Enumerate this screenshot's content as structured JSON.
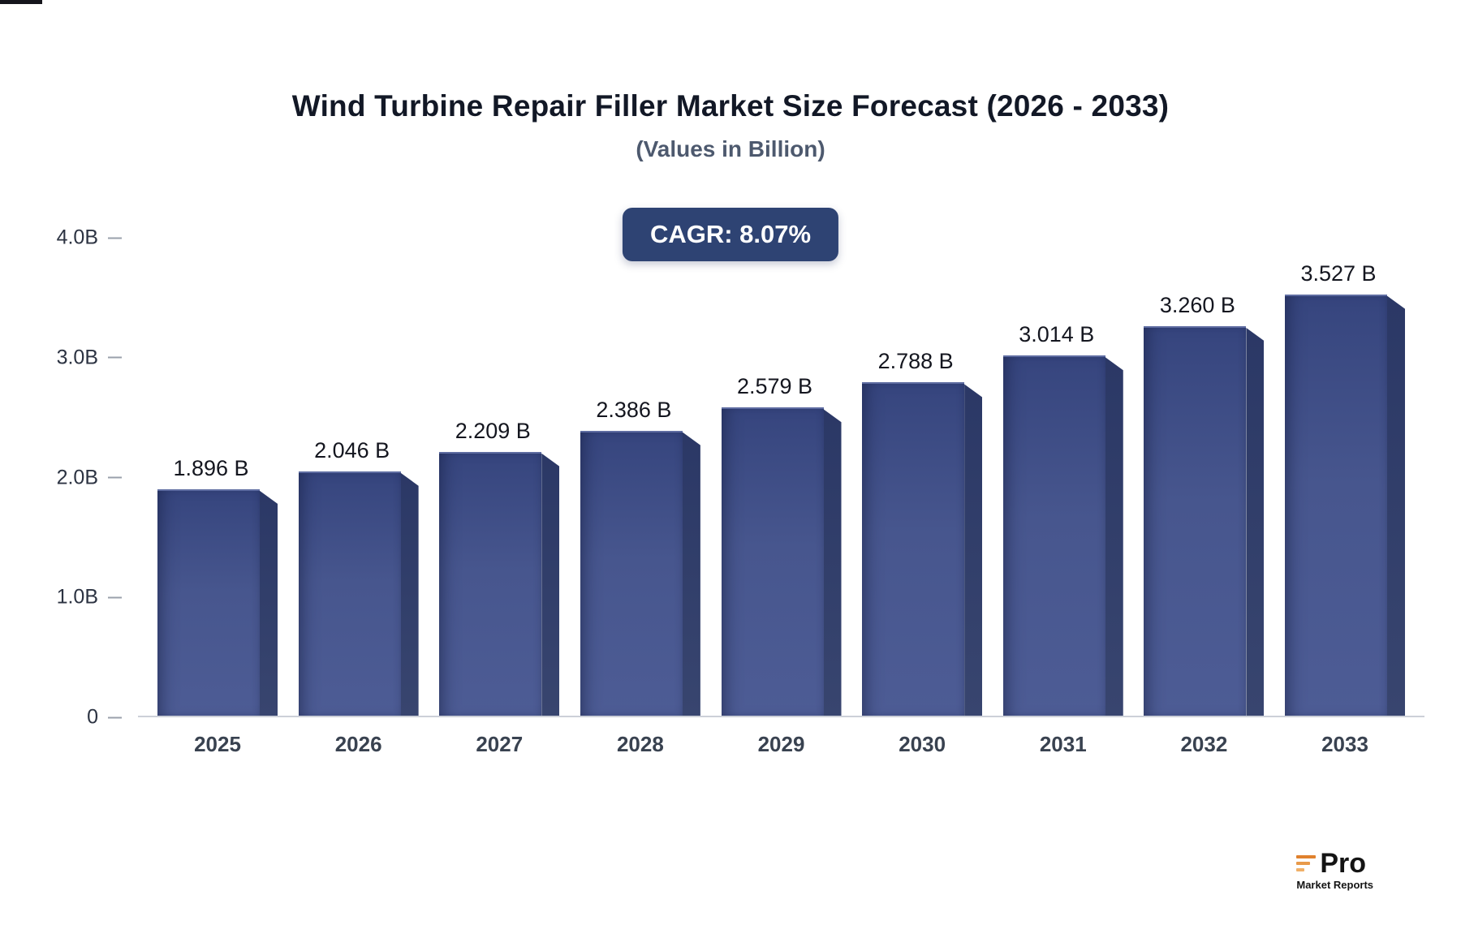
{
  "title": "Wind Turbine Repair Filler Market Size Forecast (2026 - 2033)",
  "subtitle": "(Values in Billion)",
  "cagr_label": "CAGR: 8.07%",
  "logo": {
    "name": "Pro",
    "sub": "Market Reports"
  },
  "colors": {
    "bar_face_top": "#36457e",
    "bar_face_bottom": "#4d5c95",
    "bar_side": "#2b3866",
    "badge_bg": "#2e4373",
    "title_text": "#121826",
    "subtitle_text": "#4d596e",
    "axis_line": "#ccd0d8",
    "logo_accent": "#e0812d"
  },
  "chart_data": {
    "type": "bar",
    "title": "Wind Turbine Repair Filler Market Size Forecast (2026 - 2033)",
    "subtitle": "(Values in Billion)",
    "annotation": "CAGR: 8.07%",
    "categories": [
      "2025",
      "2026",
      "2027",
      "2028",
      "2029",
      "2030",
      "2031",
      "2032",
      "2033"
    ],
    "values": [
      1.896,
      2.046,
      2.209,
      2.386,
      2.579,
      2.788,
      3.014,
      3.26,
      3.527
    ],
    "value_labels": [
      "1.896 B",
      "2.046 B",
      "2.209 B",
      "2.386 B",
      "2.579 B",
      "2.788 B",
      "3.014 B",
      "3.260 B",
      "3.527 B"
    ],
    "xlabel": "",
    "ylabel": "",
    "ylim": [
      0,
      4
    ],
    "yticks": [
      "4.0B",
      "3.0B",
      "2.0B",
      "1.0B",
      "0"
    ],
    "grid": false,
    "legend_position": "none"
  }
}
